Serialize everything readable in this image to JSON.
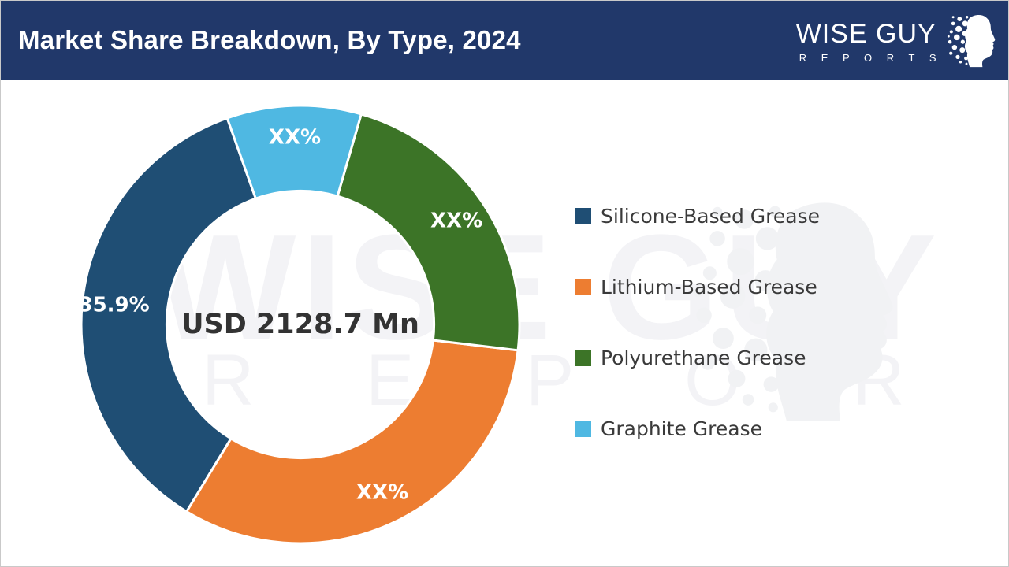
{
  "header": {
    "title": "Market Share Breakdown, By Type, 2024",
    "logo": {
      "line1": "WISE GUY",
      "line2": "R E P O R T S"
    }
  },
  "watermark": {
    "line1": "WISE GUY",
    "line2": "R E P O R T S"
  },
  "chart_data": {
    "type": "pie",
    "subtype": "donut",
    "title": "Market Share Breakdown, By Type, 2024",
    "center_label": "USD 2128.7 Mn",
    "start_angle_deg": 109.5,
    "direction": "counterclockwise",
    "outer_radius_px": 278,
    "inner_radius_ratio": 0.61,
    "label_radius_ratio": 0.855,
    "legend_position": "right",
    "categories": [
      "Silicone-Based Grease",
      "Lithium-Based Grease",
      "Polyurethane Grease",
      "Graphite Grease"
    ],
    "values": [
      35.9,
      31.8,
      22.4,
      9.9
    ],
    "segments": [
      {
        "label": "Silicone-Based Grease",
        "value_pct": 35.9,
        "display": "35.9%",
        "color": "#1f4e74"
      },
      {
        "label": "Lithium-Based Grease",
        "value_pct": 31.8,
        "display": "XX%",
        "color": "#ed7d31"
      },
      {
        "label": "Polyurethane Grease",
        "value_pct": 22.4,
        "display": "XX%",
        "color": "#3c7427"
      },
      {
        "label": "Graphite Grease",
        "value_pct": 9.9,
        "display": "XX%",
        "color": "#4fb8e2"
      }
    ]
  },
  "colors": {
    "header_bg": "#21386a",
    "page_border": "#c9c9c9",
    "center_text": "#333333",
    "legend_text": "#3a3a3a",
    "watermark": "#f3f3f6"
  }
}
